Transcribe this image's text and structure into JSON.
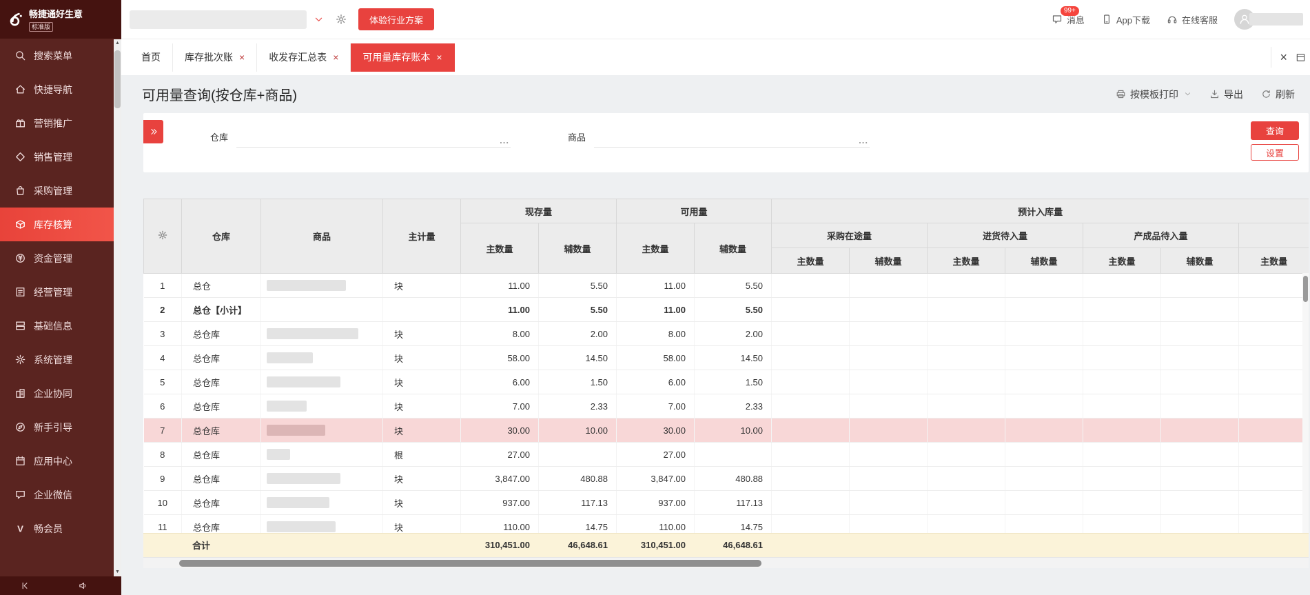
{
  "sidebar": {
    "logo_title": "畅捷通好生意",
    "logo_badge": "标准版",
    "items": [
      {
        "label": "搜索菜单",
        "icon": "search",
        "active": false
      },
      {
        "label": "快捷导航",
        "icon": "home",
        "active": false
      },
      {
        "label": "营销推广",
        "icon": "gift",
        "active": false
      },
      {
        "label": "销售管理",
        "icon": "sales",
        "active": false
      },
      {
        "label": "采购管理",
        "icon": "purchase",
        "active": false
      },
      {
        "label": "库存核算",
        "icon": "inventory",
        "active": true
      },
      {
        "label": "资金管理",
        "icon": "funds",
        "active": false
      },
      {
        "label": "经营管理",
        "icon": "operations",
        "active": false
      },
      {
        "label": "基础信息",
        "icon": "baseinfo",
        "active": false
      },
      {
        "label": "系统管理",
        "icon": "system",
        "active": false
      },
      {
        "label": "企业协同",
        "icon": "collab",
        "active": false
      },
      {
        "label": "新手引导",
        "icon": "guide",
        "active": false
      },
      {
        "label": "应用中心",
        "icon": "apps",
        "active": false
      },
      {
        "label": "企业微信",
        "icon": "wechat",
        "active": false
      },
      {
        "label": "畅会员",
        "icon": "member",
        "active": false
      }
    ]
  },
  "topbar": {
    "trial_button": "体验行业方案",
    "message_label": "消息",
    "message_badge": "99+",
    "app_download": "App下载",
    "online_service": "在线客服"
  },
  "tabs": [
    {
      "label": "首页",
      "closable": false,
      "active": false
    },
    {
      "label": "库存批次账",
      "closable": true,
      "active": false
    },
    {
      "label": "收发存汇总表",
      "closable": true,
      "active": false
    },
    {
      "label": "可用量库存账本",
      "closable": true,
      "active": true
    }
  ],
  "page": {
    "title": "可用量查询(按仓库+商品)",
    "print_label": "按模板打印",
    "export_label": "导出",
    "refresh_label": "刷新"
  },
  "filters": {
    "warehouse_label": "仓库",
    "product_label": "商品",
    "picker_ellipsis": "...",
    "query_button": "查询",
    "settings_button": "设置"
  },
  "table": {
    "col_warehouse": "仓库",
    "col_product": "商品",
    "col_unit": "主计量",
    "g_current": "现存量",
    "g_available": "可用量",
    "g_expected": "预计入库量",
    "sg_purchase": "采购在途量",
    "sg_incoming": "进货待入量",
    "sg_finished": "产成品待入量",
    "qty_main": "主数量",
    "qty_aux": "辅数量",
    "rows": [
      {
        "no": "1",
        "warehouse": "总仓",
        "unit": "块",
        "product_w": 115,
        "cur_main": "11.00",
        "cur_aux": "5.50",
        "avail_main": "11.00",
        "avail_aux": "5.50",
        "subtotal": false,
        "highlight": false
      },
      {
        "no": "2",
        "warehouse": "总仓【小计】",
        "unit": "",
        "product_w": 0,
        "cur_main": "11.00",
        "cur_aux": "5.50",
        "avail_main": "11.00",
        "avail_aux": "5.50",
        "subtotal": true,
        "highlight": false
      },
      {
        "no": "3",
        "warehouse": "总仓库",
        "unit": "块",
        "product_w": 133,
        "cur_main": "8.00",
        "cur_aux": "2.00",
        "avail_main": "8.00",
        "avail_aux": "2.00",
        "subtotal": false,
        "highlight": false
      },
      {
        "no": "4",
        "warehouse": "总仓库",
        "unit": "块",
        "product_w": 67,
        "cur_main": "58.00",
        "cur_aux": "14.50",
        "avail_main": "58.00",
        "avail_aux": "14.50",
        "subtotal": false,
        "highlight": false
      },
      {
        "no": "5",
        "warehouse": "总仓库",
        "unit": "块",
        "product_w": 107,
        "cur_main": "6.00",
        "cur_aux": "1.50",
        "avail_main": "6.00",
        "avail_aux": "1.50",
        "subtotal": false,
        "highlight": false
      },
      {
        "no": "6",
        "warehouse": "总仓库",
        "unit": "块",
        "product_w": 58,
        "cur_main": "7.00",
        "cur_aux": "2.33",
        "avail_main": "7.00",
        "avail_aux": "2.33",
        "subtotal": false,
        "highlight": false
      },
      {
        "no": "7",
        "warehouse": "总仓库",
        "unit": "块",
        "product_w": 85,
        "cur_main": "30.00",
        "cur_aux": "10.00",
        "avail_main": "30.00",
        "avail_aux": "10.00",
        "subtotal": false,
        "highlight": true
      },
      {
        "no": "8",
        "warehouse": "总仓库",
        "unit": "根",
        "product_w": 34,
        "cur_main": "27.00",
        "cur_aux": "",
        "avail_main": "27.00",
        "avail_aux": "",
        "subtotal": false,
        "highlight": false
      },
      {
        "no": "9",
        "warehouse": "总仓库",
        "unit": "块",
        "product_w": 107,
        "cur_main": "3,847.00",
        "cur_aux": "480.88",
        "avail_main": "3,847.00",
        "avail_aux": "480.88",
        "subtotal": false,
        "highlight": false
      },
      {
        "no": "10",
        "warehouse": "总仓库",
        "unit": "块",
        "product_w": 91,
        "cur_main": "937.00",
        "cur_aux": "117.13",
        "avail_main": "937.00",
        "avail_aux": "117.13",
        "subtotal": false,
        "highlight": false
      },
      {
        "no": "11",
        "warehouse": "总仓库",
        "unit": "块",
        "product_w": 100,
        "cur_main": "110.00",
        "cur_aux": "14.75",
        "avail_main": "110.00",
        "avail_aux": "14.75",
        "subtotal": false,
        "highlight": false
      }
    ],
    "total": {
      "label": "合计",
      "cur_main": "310,451.00",
      "cur_aux": "46,648.61",
      "avail_main": "310,451.00",
      "avail_aux": "46,648.61"
    }
  }
}
